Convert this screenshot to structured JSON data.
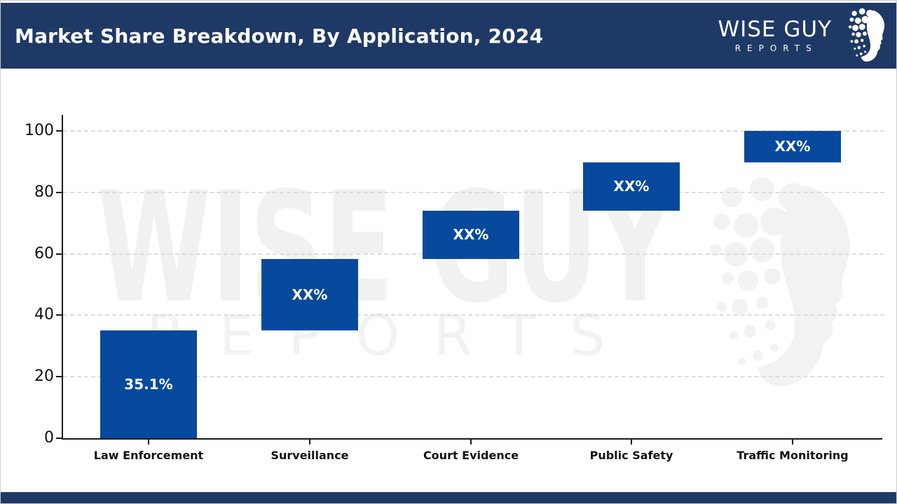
{
  "header": {
    "title": "Market Share Breakdown, By Application, 2024",
    "logo": {
      "line1": "WISE GUY",
      "line2": "REPORTS"
    }
  },
  "watermark": {
    "line1": "WISE GUY",
    "line2": "REPORTS"
  },
  "colors": {
    "header_bg": "#1f3966",
    "footer_bg": "#1f3966",
    "bar": "#07499c",
    "grid_line": "#dcdcdc",
    "axis": "#1a1a1a",
    "value_label": "#ffffff",
    "watermark": "#f1f1f1"
  },
  "chart_data": {
    "type": "bar",
    "subtype": "waterfall",
    "title": "Market Share Breakdown, By Application, 2024",
    "categories": [
      "Law Enforcement",
      "Surveillance",
      "Court Evidence",
      "Public Safety",
      "Traffic Monitoring"
    ],
    "bars": [
      {
        "category": "Law Enforcement",
        "start": 0,
        "end": 35.1,
        "label": "35.1%"
      },
      {
        "category": "Surveillance",
        "start": 35.1,
        "end": 58.4,
        "label": "XX%"
      },
      {
        "category": "Court Evidence",
        "start": 58.4,
        "end": 74,
        "label": "XX%"
      },
      {
        "category": "Public Safety",
        "start": 74,
        "end": 89.8,
        "label": "XX%"
      },
      {
        "category": "Traffic Monitoring",
        "start": 89.8,
        "end": 100,
        "label": "XX%"
      }
    ],
    "xlabel": "",
    "ylabel": "",
    "ylim": [
      0,
      100
    ],
    "yticks": [
      0,
      20,
      40,
      60,
      80,
      100
    ],
    "grid": "horizontal-dashed",
    "legend": "none"
  }
}
